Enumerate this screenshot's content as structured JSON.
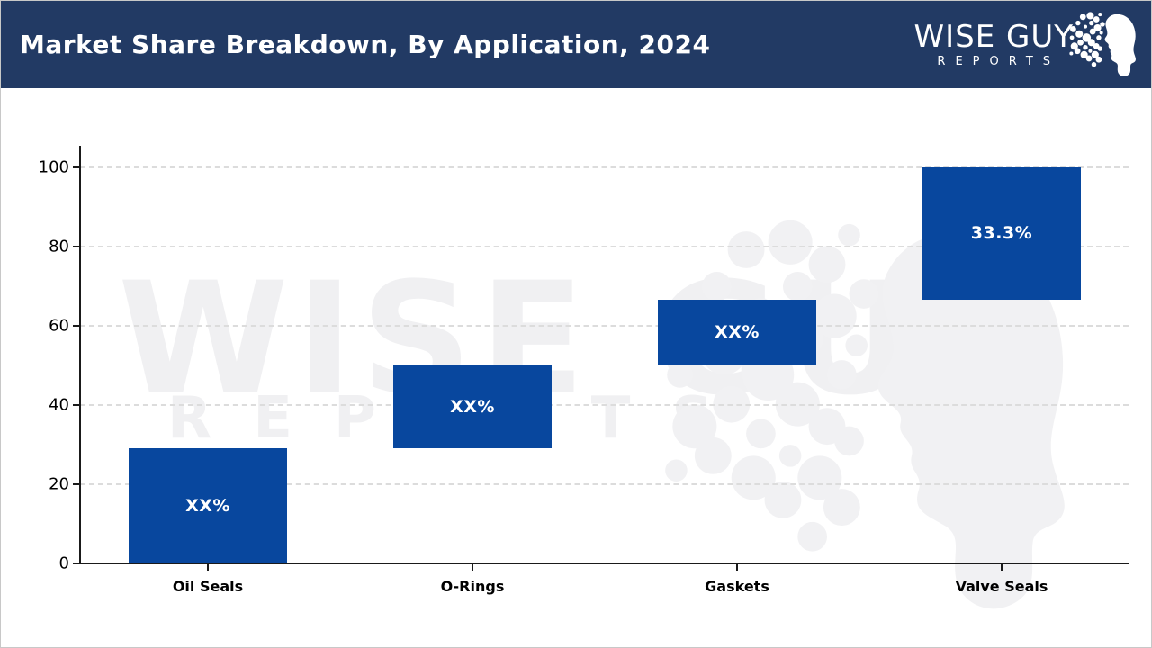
{
  "header": {
    "title": "Market Share Breakdown, By Application, 2024",
    "logo": {
      "line1": "WISE GUY",
      "line2": "REPORTS"
    }
  },
  "watermark": {
    "line1": "WISE GUY",
    "line2": "REPORTS"
  },
  "colors": {
    "header_bg": "#223A64",
    "bar_fill": "#08479E",
    "gridline": "#DCDCDC",
    "axis": "#1A1A1A",
    "watermark": "#F0F0F2"
  },
  "chart_data": {
    "type": "bar",
    "subtype": "waterfall",
    "title": "Market Share Breakdown, By Application, 2024",
    "categories": [
      "Oil Seals",
      "O-Rings",
      "Gaskets",
      "Valve Seals"
    ],
    "bars": [
      {
        "category": "Oil Seals",
        "start": 0,
        "end": 29.0,
        "label": "XX%"
      },
      {
        "category": "O-Rings",
        "start": 29.0,
        "end": 50.0,
        "label": "XX%"
      },
      {
        "category": "Gaskets",
        "start": 50.0,
        "end": 66.7,
        "label": "XX%"
      },
      {
        "category": "Valve Seals",
        "start": 66.7,
        "end": 100.0,
        "label": "33.3%"
      }
    ],
    "yticks": [
      0,
      20,
      40,
      60,
      80,
      100
    ],
    "ylim": [
      0,
      105
    ],
    "xlabel": "",
    "ylabel": "",
    "grid": "horizontal-dashed",
    "legend": "none"
  }
}
